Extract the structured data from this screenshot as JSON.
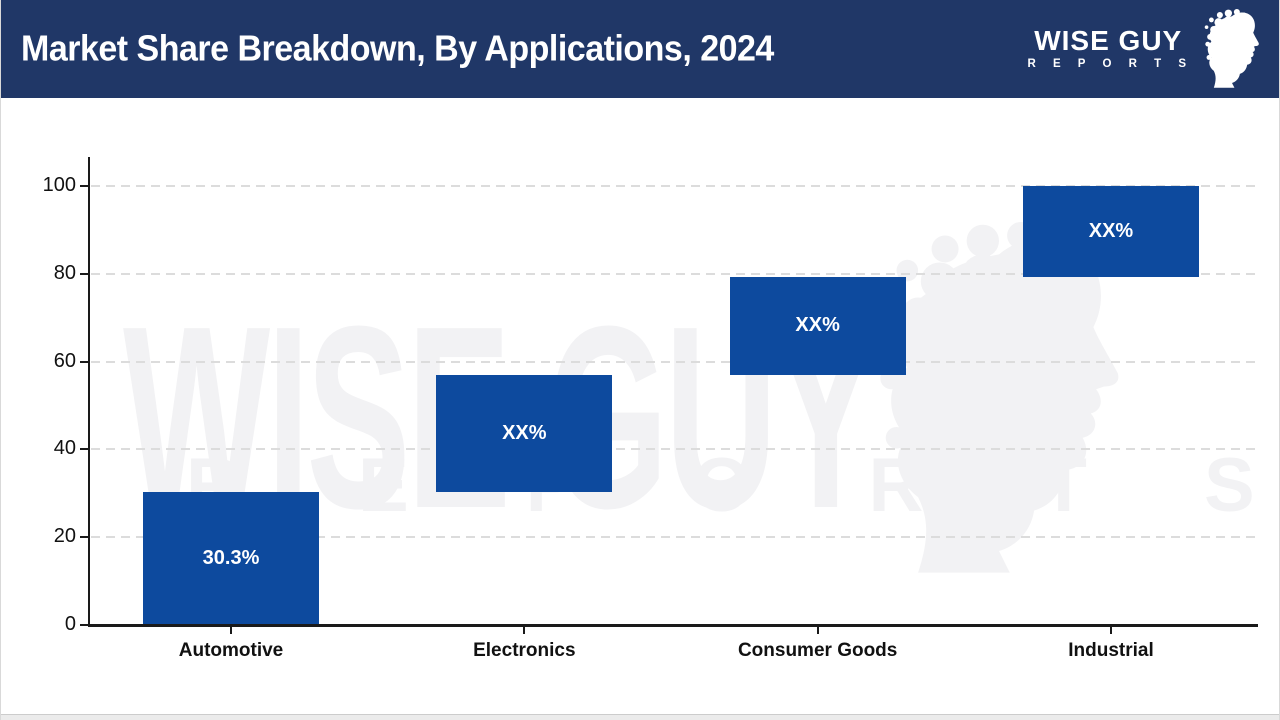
{
  "header": {
    "title": "Market Share Breakdown, By Applications, 2024",
    "logo": {
      "line1": "WISE GUY",
      "line2": "R E P O R T S",
      "head_icon": "wiseguy-head-icon"
    }
  },
  "watermark": {
    "line1": "WISE GUY",
    "line2": "R E P O R T S"
  },
  "colors": {
    "header_bg": "#203767",
    "bar": "#0d4a9e",
    "grid": "#dcdcdc",
    "axis": "#1a1a1a",
    "watermark": "#f2f2f4",
    "bar_label_text": "#ffffff",
    "title_text": "#ffffff"
  },
  "chart_data": {
    "type": "bar",
    "subtype": "waterfall",
    "title": "Market Share Breakdown, By Applications, 2024",
    "categories": [
      "Automotive",
      "Electronics",
      "Consumer Goods",
      "Industrial"
    ],
    "bars": [
      {
        "category": "Automotive",
        "start": 0,
        "end": 30.3,
        "label": "30.3%"
      },
      {
        "category": "Electronics",
        "start": 30.3,
        "end": 57.0,
        "label": "XX%"
      },
      {
        "category": "Consumer Goods",
        "start": 57.0,
        "end": 79.3,
        "label": "XX%"
      },
      {
        "category": "Industrial",
        "start": 79.3,
        "end": 100,
        "label": "XX%"
      }
    ],
    "yticks": [
      0,
      20,
      40,
      60,
      80,
      100
    ],
    "ylim": [
      0,
      106
    ],
    "xlabel": "",
    "ylabel": "",
    "grid": "dashed-horizontal",
    "legend": "none"
  }
}
